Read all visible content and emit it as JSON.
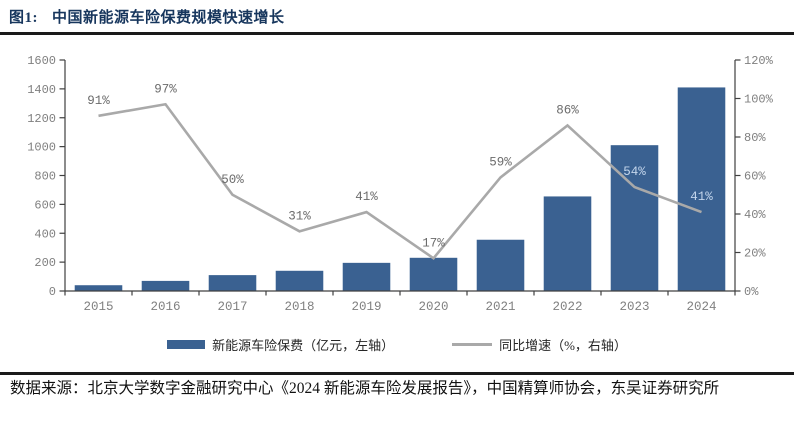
{
  "figure": {
    "label": "图1:",
    "title": "中国新能源车险保费规模快速增长"
  },
  "chart_data": {
    "type": "bar",
    "subtype": "combo-bar-line-dual-axis",
    "categories": [
      "2015",
      "2016",
      "2017",
      "2018",
      "2019",
      "2020",
      "2021",
      "2022",
      "2023",
      "2024"
    ],
    "series": [
      {
        "name": "新能源车险保费（亿元，左轴）",
        "kind": "bar",
        "axis": "left",
        "values": [
          40,
          70,
          110,
          140,
          195,
          230,
          355,
          655,
          1010,
          1410
        ]
      },
      {
        "name": "同比增速（%，右轴）",
        "kind": "line",
        "axis": "right",
        "values": [
          91,
          97,
          50,
          31,
          41,
          17,
          59,
          86,
          54,
          41
        ],
        "point_labels": [
          "91%",
          "97%",
          "50%",
          "31%",
          "41%",
          "17%",
          "59%",
          "86%",
          "54%",
          "41%"
        ]
      }
    ],
    "left_axis": {
      "min": 0,
      "max": 1600,
      "step": 200,
      "tick_labels": [
        "0",
        "200",
        "400",
        "600",
        "800",
        "1000",
        "1200",
        "1400",
        "1600"
      ]
    },
    "right_axis": {
      "min": 0,
      "max": 120,
      "step": 20,
      "tick_labels": [
        "0%",
        "20%",
        "40%",
        "60%",
        "80%",
        "100%",
        "120%"
      ]
    },
    "grid": false,
    "legend_position": "bottom"
  },
  "colors": {
    "bar": "#3A6191",
    "line": "#A9A9A9",
    "axis_text": "#808080",
    "axis_line": "#404040",
    "data_label": "#6B6B6B",
    "data_label_on_bar": "#C4D6EC",
    "title": "#17365D",
    "rule": "#1A1A1A"
  },
  "source": {
    "text": "数据来源：北京大学数字金融研究中心《2024 新能源车险发展报告》，中国精算师协会，东吴证券研究所"
  }
}
